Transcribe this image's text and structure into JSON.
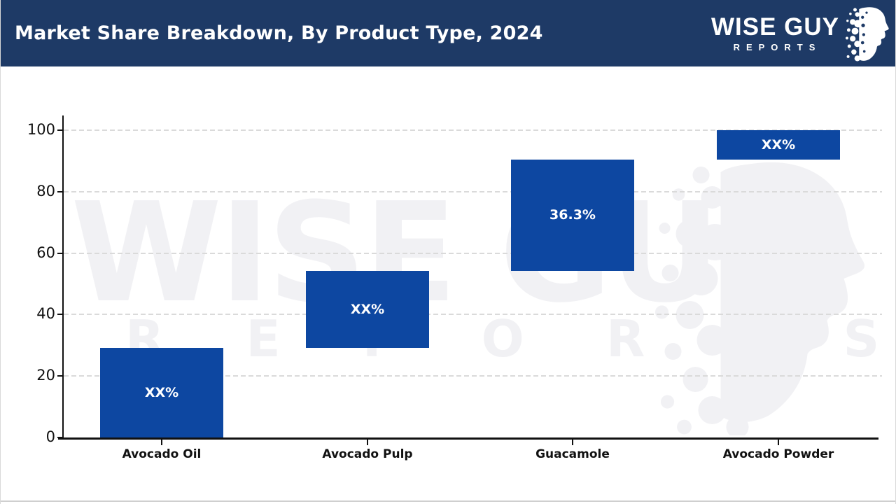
{
  "header": {
    "title": "Market Share Breakdown, By Product Type, 2024",
    "background_color": "#1e3a66",
    "logo": {
      "line1": "WISE GUY",
      "line2": "REPORTS"
    }
  },
  "watermark": {
    "line1": "WISE GUY",
    "line2": "R E P O R T S"
  },
  "chart_data": {
    "type": "bar",
    "subtype": "floating-segment-breakdown",
    "title": "Market Share Breakdown, By Product Type, 2024",
    "categories": [
      "Avocado Oil",
      "Avocado Pulp",
      "Guacamole",
      "Avocado Powder"
    ],
    "segments": [
      {
        "category": "Avocado Oil",
        "start": 0,
        "end": 29.2,
        "label": "XX%"
      },
      {
        "category": "Avocado Pulp",
        "start": 29.2,
        "end": 54.2,
        "label": "XX%"
      },
      {
        "category": "Guacamole",
        "start": 54.2,
        "end": 90.5,
        "label": "36.3%"
      },
      {
        "category": "Avocado Powder",
        "start": 90.5,
        "end": 100,
        "label": "XX%"
      }
    ],
    "yticks": [
      0,
      20,
      40,
      60,
      80,
      100
    ],
    "ylim": [
      0,
      105
    ],
    "xlabel": "",
    "ylabel": "",
    "grid": "horizontal-dashed",
    "legend": "none",
    "bar_color": "#0d47a1",
    "bar_label_color": "#ffffff"
  }
}
